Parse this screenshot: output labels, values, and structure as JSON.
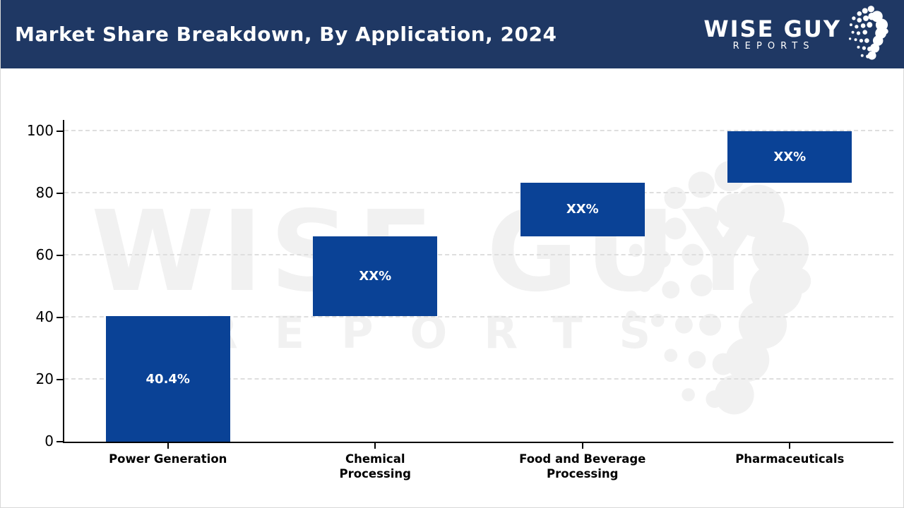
{
  "header": {
    "title": "Market Share Breakdown, By Application, 2024",
    "background_color": "#1f3864",
    "logo": {
      "line1": "WISE GUY",
      "line2": "REPORTS"
    }
  },
  "watermark": {
    "line1": "WISE GUY",
    "line2": "REPORTS",
    "color": "#f1f1f1"
  },
  "chart_data": {
    "type": "bar",
    "variant": "floating-waterfall",
    "title": "Market Share Breakdown, By Application, 2024",
    "categories": [
      "Power Generation",
      "Chemical Processing",
      "Food and Beverage Processing",
      "Pharmaceuticals"
    ],
    "category_lines": [
      [
        "Power Generation"
      ],
      [
        "Chemical",
        "Processing"
      ],
      [
        "Food and Beverage",
        "Processing"
      ],
      [
        "Pharmaceuticals"
      ]
    ],
    "series": [
      {
        "name": "Market share (%)",
        "segments": [
          {
            "category": "Power Generation",
            "start": 0,
            "end": 40.4,
            "label": "40.4%"
          },
          {
            "category": "Chemical Processing",
            "start": 40.4,
            "end": 66.2,
            "label": "XX%"
          },
          {
            "category": "Food and Beverage Processing",
            "start": 66.2,
            "end": 83.4,
            "label": "XX%"
          },
          {
            "category": "Pharmaceuticals",
            "start": 83.4,
            "end": 100,
            "label": "XX%"
          }
        ]
      }
    ],
    "xlabel": "",
    "ylabel": "",
    "ylim": [
      0,
      103.6
    ],
    "yticks": [
      0,
      20,
      40,
      60,
      80,
      100
    ],
    "grid": "horizontal dashed",
    "legend": "none",
    "bar_color": "#0a4296",
    "bar_label_color": "#ffffff",
    "axis_color": "#000000",
    "gridline_color": "#dedede"
  }
}
